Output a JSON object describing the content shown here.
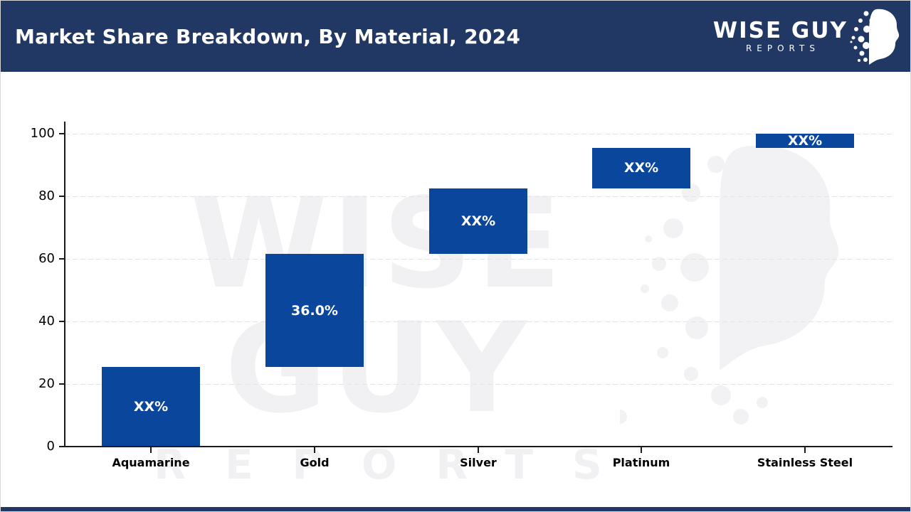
{
  "header": {
    "title": "Market Share Breakdown, By Material, 2024",
    "logo": {
      "line1": "WISE GUY",
      "line2": "REPORTS"
    }
  },
  "watermark": {
    "line1": "WISE GUY",
    "line2": "REPORTS"
  },
  "chart_data": {
    "type": "bar",
    "subtype": "waterfall",
    "title": "Market Share Breakdown, By Material, 2024",
    "xlabel": "",
    "ylabel": "",
    "categories": [
      "Aquamarine",
      "Gold",
      "Silver",
      "Platinum",
      "Stainless Steel"
    ],
    "segments": [
      {
        "category": "Aquamarine",
        "start": 0,
        "end": 25.5,
        "value": 25.5,
        "label": "XX%"
      },
      {
        "category": "Gold",
        "start": 25.5,
        "end": 61.5,
        "value": 36.0,
        "label": "36.0%"
      },
      {
        "category": "Silver",
        "start": 61.5,
        "end": 82.5,
        "value": 21.0,
        "label": "XX%"
      },
      {
        "category": "Platinum",
        "start": 82.5,
        "end": 95.5,
        "value": 13.0,
        "label": "XX%"
      },
      {
        "category": "Stainless Steel",
        "start": 95.5,
        "end": 100,
        "value": 4.5,
        "label": "XX%"
      }
    ],
    "yticks": [
      0,
      20,
      40,
      60,
      80,
      100
    ],
    "ylim": [
      0,
      104
    ],
    "grid": "horizontal-dashed",
    "legend": "none",
    "bar_color": "#0a469c",
    "label_color": "#ffffff"
  },
  "colors": {
    "header_bg": "#213764",
    "bar": "#0a469c",
    "grid": "#e3e3e3",
    "axis": "#1a1a1a",
    "watermark": "#f1f1f4",
    "page_border": "#d8d8d8"
  }
}
